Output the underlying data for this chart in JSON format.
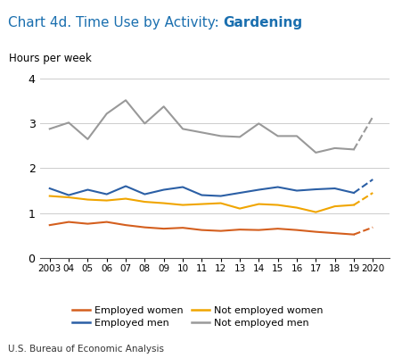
{
  "title_regular": "Chart 4d. Time Use by Activity: ",
  "title_bold": "Gardening",
  "ylabel": "Hours per week",
  "xlabel_source": "U.S. Bureau of Economic Analysis",
  "years": [
    2003,
    2004,
    2005,
    2006,
    2007,
    2008,
    2009,
    2010,
    2011,
    2012,
    2013,
    2014,
    2015,
    2016,
    2017,
    2018,
    2019
  ],
  "year_2020": 2020,
  "employed_women": [
    0.73,
    0.8,
    0.76,
    0.8,
    0.73,
    0.68,
    0.65,
    0.67,
    0.62,
    0.6,
    0.63,
    0.62,
    0.65,
    0.62,
    0.58,
    0.55,
    0.52
  ],
  "employed_women_2020": 0.68,
  "employed_men": [
    1.55,
    1.4,
    1.52,
    1.42,
    1.6,
    1.42,
    1.52,
    1.58,
    1.4,
    1.38,
    1.45,
    1.52,
    1.58,
    1.5,
    1.53,
    1.55,
    1.45
  ],
  "employed_men_2020": 1.75,
  "not_employed_women": [
    1.38,
    1.35,
    1.3,
    1.28,
    1.32,
    1.25,
    1.22,
    1.18,
    1.2,
    1.22,
    1.1,
    1.2,
    1.18,
    1.12,
    1.02,
    1.15,
    1.18
  ],
  "not_employed_women_2020": 1.45,
  "not_employed_men": [
    2.88,
    3.02,
    2.65,
    3.22,
    3.52,
    3.0,
    3.38,
    2.88,
    2.8,
    2.72,
    2.7,
    3.0,
    2.72,
    2.72,
    2.35,
    2.45,
    2.42
  ],
  "not_employed_men_2020": 3.15,
  "color_emp_women": "#d45f1e",
  "color_emp_men": "#2b5fa5",
  "color_not_emp_women": "#f0a500",
  "color_not_emp_men": "#999999",
  "ylim": [
    0,
    4
  ],
  "yticks": [
    0,
    1,
    2,
    3,
    4
  ],
  "xtick_labels": [
    "2003",
    "04",
    "05",
    "06",
    "07",
    "08",
    "09",
    "10",
    "11",
    "12",
    "13",
    "14",
    "15",
    "16",
    "17",
    "18",
    "19",
    "2020"
  ]
}
